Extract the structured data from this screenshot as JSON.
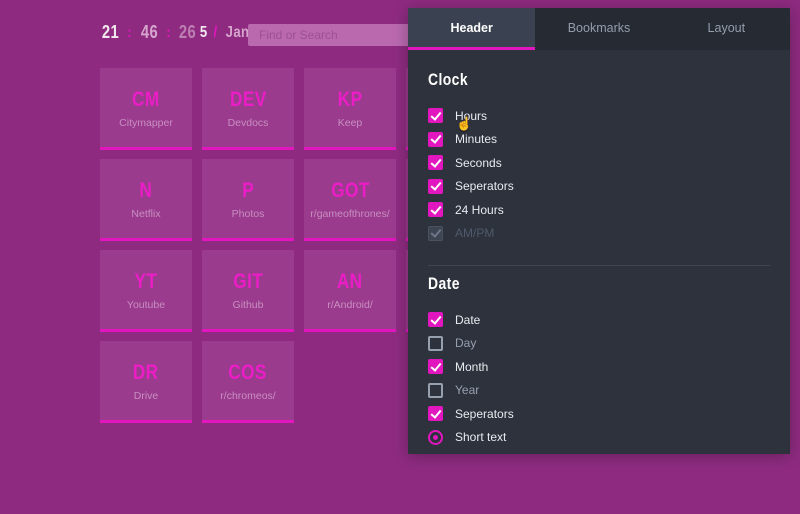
{
  "colors": {
    "accent": "#e216bf",
    "page_bg": "#8e2b80",
    "panel_bg": "#2d323c",
    "tile_bg": "#9b3b8e"
  },
  "header": {
    "clock": {
      "hours": "21",
      "minutes": "46",
      "seconds": "26",
      "separator": ":"
    },
    "date": {
      "day": "5",
      "separator": "/",
      "month": "Jan"
    },
    "search": {
      "placeholder": "Find or Search"
    }
  },
  "tiles": [
    {
      "letter": "CM",
      "label": "Citymapper"
    },
    {
      "letter": "DEV",
      "label": "Devdocs"
    },
    {
      "letter": "KP",
      "label": "Keep"
    },
    {
      "letter": "N",
      "label": "Netflix"
    },
    {
      "letter": "P",
      "label": "Photos"
    },
    {
      "letter": "GOT",
      "label": "r/gameofthrones/"
    },
    {
      "letter": "YT",
      "label": "Youtube"
    },
    {
      "letter": "GIT",
      "label": "Github"
    },
    {
      "letter": "AN",
      "label": "r/Android/"
    },
    {
      "letter": "DR",
      "label": "Drive"
    },
    {
      "letter": "COS",
      "label": "r/chromeos/"
    }
  ],
  "panel": {
    "tabs": [
      {
        "label": "Header"
      },
      {
        "label": "Bookmarks"
      },
      {
        "label": "Layout"
      }
    ],
    "active_tab": "Header",
    "sections": [
      {
        "title": "Clock",
        "items": [
          {
            "label": "Hours",
            "control": "checkbox",
            "checked": true,
            "disabled": false
          },
          {
            "label": "Minutes",
            "control": "checkbox",
            "checked": true,
            "disabled": false
          },
          {
            "label": "Seconds",
            "control": "checkbox",
            "checked": true,
            "disabled": false
          },
          {
            "label": "Seperators",
            "control": "checkbox",
            "checked": true,
            "disabled": false
          },
          {
            "label": "24 Hours",
            "control": "checkbox",
            "checked": true,
            "disabled": false
          },
          {
            "label": "AM/PM",
            "control": "checkbox",
            "checked": true,
            "disabled": true
          }
        ]
      },
      {
        "title": "Date",
        "items": [
          {
            "label": "Date",
            "control": "checkbox",
            "checked": true,
            "disabled": false
          },
          {
            "label": "Day",
            "control": "checkbox",
            "checked": false,
            "disabled": false
          },
          {
            "label": "Month",
            "control": "checkbox",
            "checked": true,
            "disabled": false
          },
          {
            "label": "Year",
            "control": "checkbox",
            "checked": false,
            "disabled": false
          },
          {
            "label": "Seperators",
            "control": "checkbox",
            "checked": true,
            "disabled": false
          },
          {
            "label": "Short text",
            "control": "radio",
            "checked": true,
            "disabled": false
          }
        ]
      }
    ]
  },
  "icons": {
    "cursor": "☝"
  }
}
